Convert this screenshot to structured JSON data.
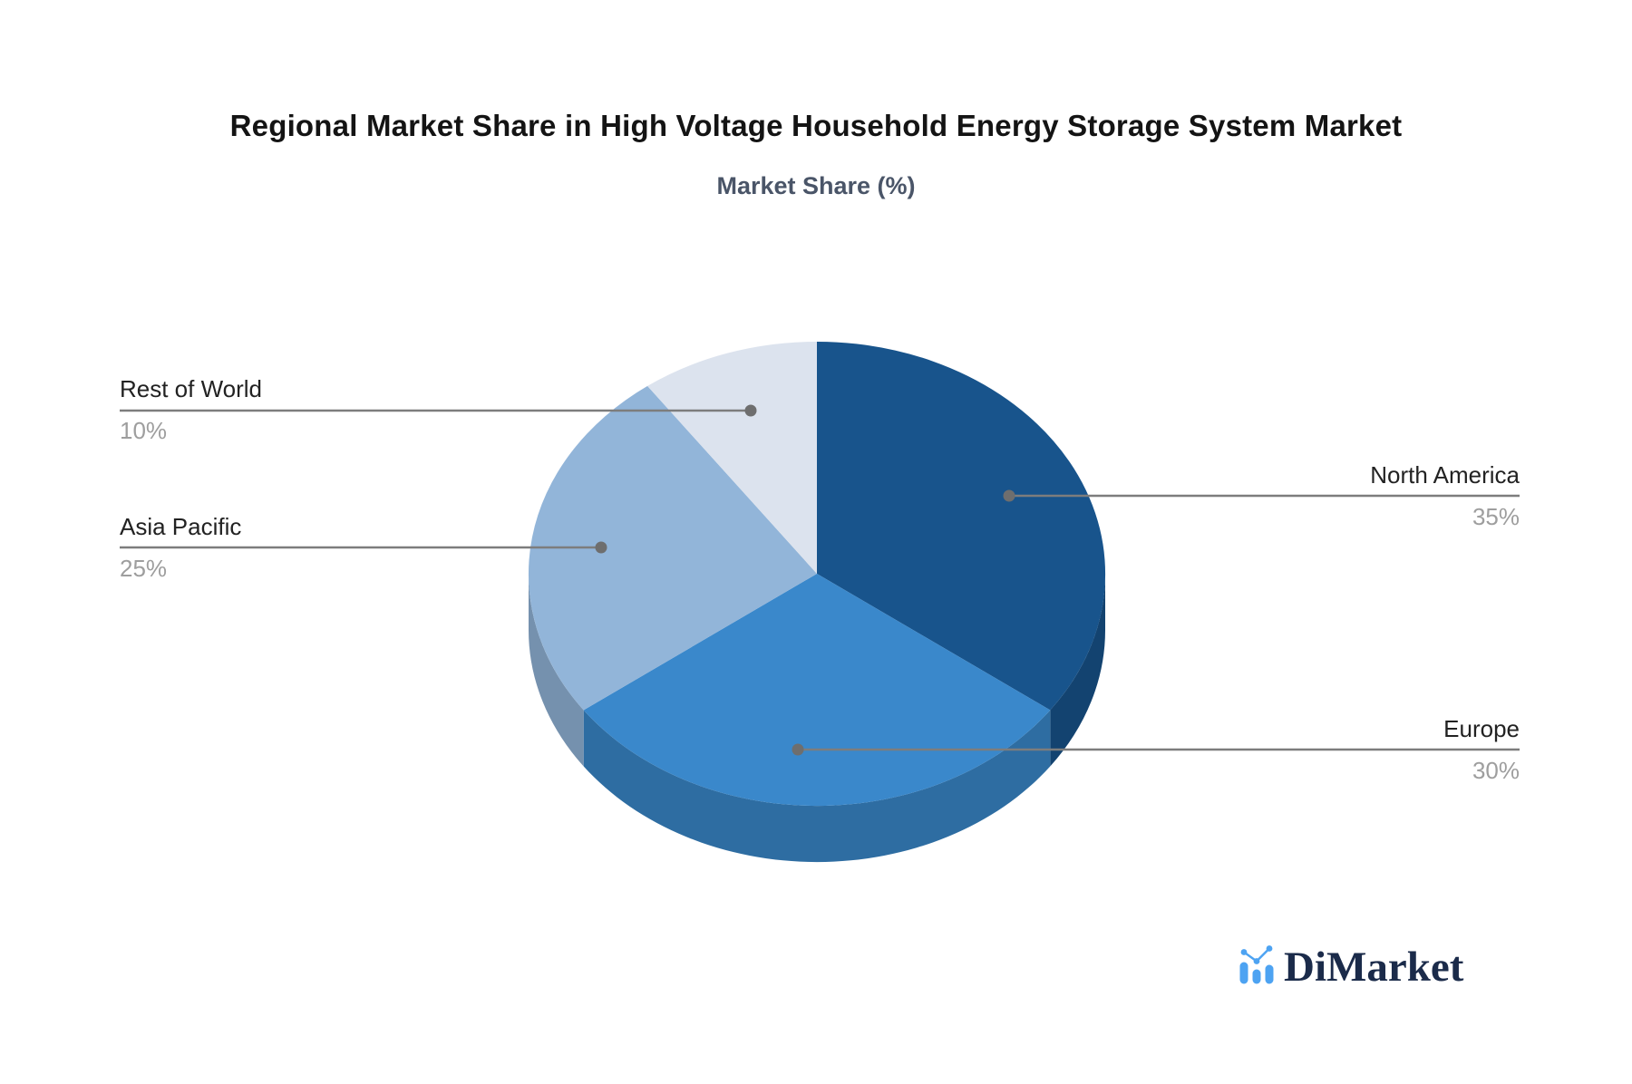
{
  "page": {
    "background": "#ffffff"
  },
  "chart_data": {
    "type": "pie",
    "style": "3d",
    "title": "Regional Market Share in High Voltage Household Energy Storage System Market",
    "subtitle": "Market Share (%)",
    "value_unit": "%",
    "start_angle_deg": 0,
    "direction": "clockwise",
    "legend": "none",
    "slices": [
      {
        "label": "North America",
        "value": 35,
        "display": "35%",
        "color": "#18548C"
      },
      {
        "label": "Europe",
        "value": 30,
        "display": "30%",
        "color": "#3A88CB"
      },
      {
        "label": "Asia Pacific",
        "value": 25,
        "display": "25%",
        "color": "#92B5D9"
      },
      {
        "label": "Rest of World",
        "value": 10,
        "display": "10%",
        "color": "#DCE3EE"
      }
    ],
    "leader_line_color": "#7d7d7d",
    "label_text_color": "#222222",
    "percent_text_color": "#9e9e9e"
  },
  "branding": {
    "logo_text": "DiMarket",
    "logo_icon": "bar-chart-sparkline-icon",
    "logo_text_color": "#1b2b4a",
    "logo_icon_color": "#4da3f2"
  }
}
